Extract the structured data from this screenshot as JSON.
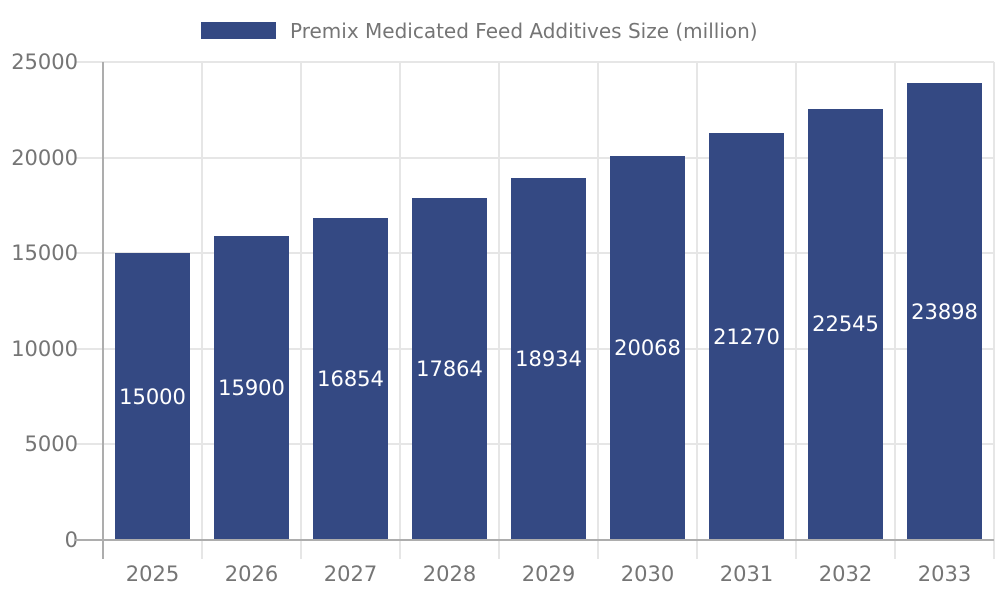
{
  "chart_data": {
    "type": "bar",
    "title": "",
    "xlabel": "",
    "ylabel": "",
    "categories": [
      "2025",
      "2026",
      "2027",
      "2028",
      "2029",
      "2030",
      "2031",
      "2032",
      "2033"
    ],
    "series": [
      {
        "name": "Premix Medicated Feed Additives Size (million)",
        "values": [
          15000,
          15900,
          16854,
          17864,
          18934,
          20068,
          21270,
          22545,
          23898
        ]
      }
    ],
    "ylim": [
      0,
      25000
    ],
    "yticks": [
      0,
      5000,
      10000,
      15000,
      20000,
      25000
    ],
    "grid": true,
    "legend_position": "top",
    "value_label_position": "inside-center",
    "colors": {
      "bar": "#344983",
      "grid": "#e6e6e6",
      "axis": "#adadad",
      "tick_text": "#757575",
      "legend_text": "#757575",
      "value_text": "#ffffff",
      "background": "#ffffff"
    }
  }
}
